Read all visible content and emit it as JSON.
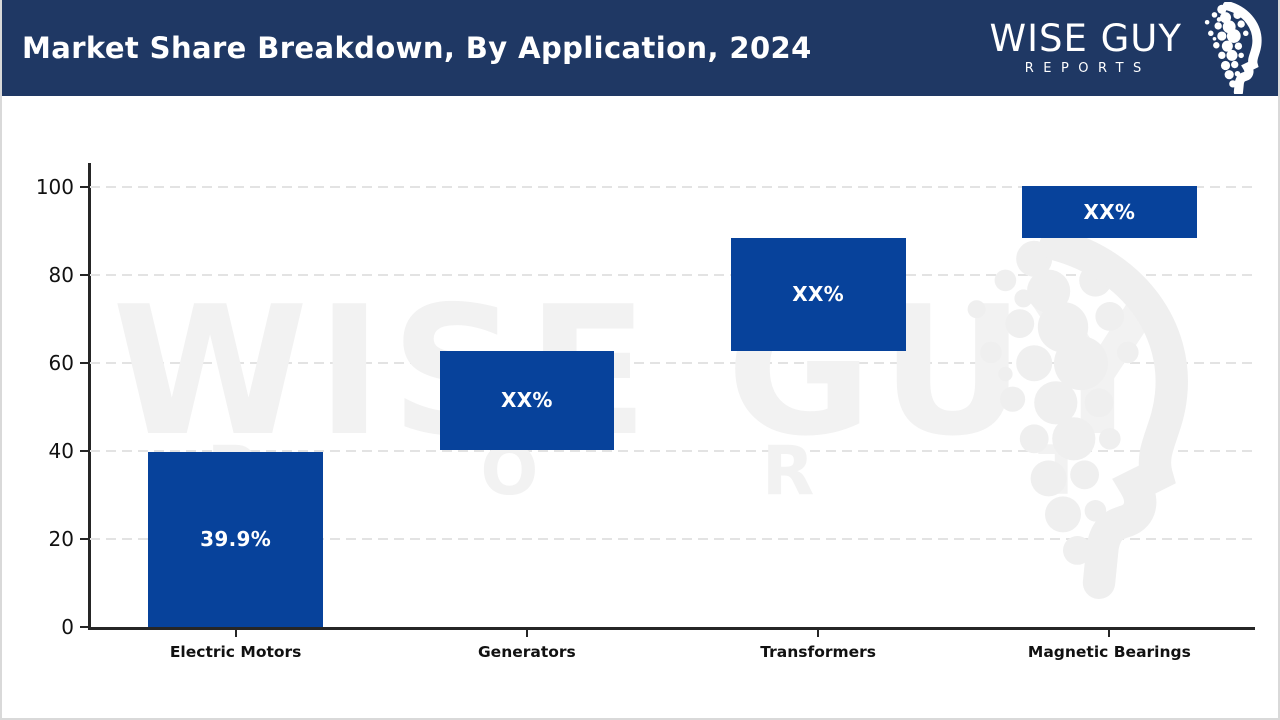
{
  "header": {
    "title": "Market Share Breakdown, By Application, 2024",
    "logo": {
      "brand_line1": "WISE GUY",
      "brand_line2": "REPORTS",
      "icon": "head-profile-dots-icon"
    }
  },
  "watermark": {
    "line1": "WISE GUY",
    "line2": "P O R T S",
    "icon": "head-profile-dots-icon"
  },
  "colors": {
    "header_bg": "#1f3864",
    "header_text": "#ffffff",
    "bar": "#07429b",
    "bar_value_text": "#ffffff",
    "grid": "#e3e3e3",
    "axis": "#262626",
    "tick_text": "#111111",
    "watermark": "#f2f2f2",
    "page_border": "#d9d9d9"
  },
  "chart_data": {
    "type": "bar",
    "subtype": "waterfall",
    "title": "Market Share Breakdown, By Application, 2024",
    "xlabel": "",
    "ylabel": "",
    "categories": [
      "Electric Motors",
      "Generators",
      "Transformers",
      "Magnetic Bearings"
    ],
    "segments": [
      {
        "category": "Electric Motors",
        "start": 0,
        "end": 39.9,
        "value_label": "39.9%"
      },
      {
        "category": "Generators",
        "start": 40.2,
        "end": 62.8,
        "value_label": "XX%"
      },
      {
        "category": "Transformers",
        "start": 62.8,
        "end": 88.5,
        "value_label": "XX%"
      },
      {
        "category": "Magnetic Bearings",
        "start": 88.5,
        "end": 100.3,
        "value_label": "XX%"
      }
    ],
    "y_ticks": [
      0,
      20,
      40,
      60,
      80,
      100
    ],
    "ylim": [
      0,
      105.5
    ],
    "grid": "horizontal-dashed",
    "legend": "none",
    "bar_color": "#07429b",
    "value_label_color": "#ffffff"
  }
}
